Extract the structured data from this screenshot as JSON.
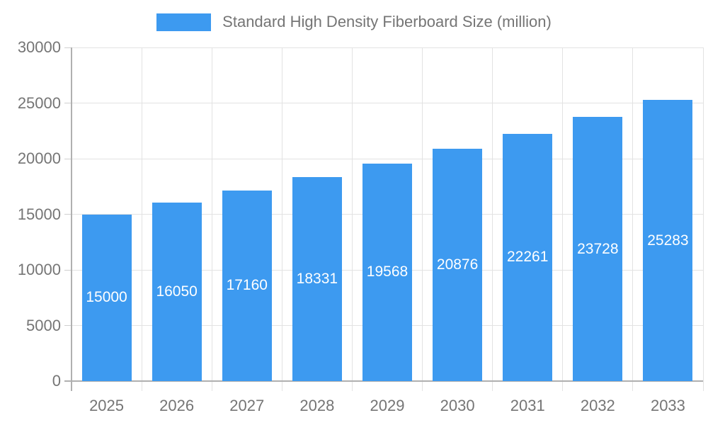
{
  "legend": {
    "label": "Standard High Density Fiberboard Size (million)"
  },
  "colors": {
    "bar": "#3D9AF0",
    "value_label": "#ffffff",
    "axis_text": "#757575",
    "legend_text": "#757575",
    "grid": "#e2e2e2",
    "tick": "#cfcfcf",
    "axis_line": "#b0b0b0",
    "background": "#ffffff"
  },
  "chart_data": {
    "type": "bar",
    "title": "",
    "xlabel": "",
    "ylabel": "",
    "categories": [
      "2025",
      "2026",
      "2027",
      "2028",
      "2029",
      "2030",
      "2031",
      "2032",
      "2033"
    ],
    "series": [
      {
        "name": "Standard High Density Fiberboard Size (million)",
        "values": [
          15000,
          16050,
          17160,
          18331,
          19568,
          20876,
          22261,
          23728,
          25283
        ]
      }
    ],
    "ylim": [
      0,
      30000
    ],
    "ytick_step": 5000,
    "ytick_labels": [
      "0",
      "5000",
      "10000",
      "15000",
      "20000",
      "25000",
      "30000"
    ],
    "grid": true,
    "legend_position": "top-center",
    "value_labels": "inside-middle-white"
  }
}
